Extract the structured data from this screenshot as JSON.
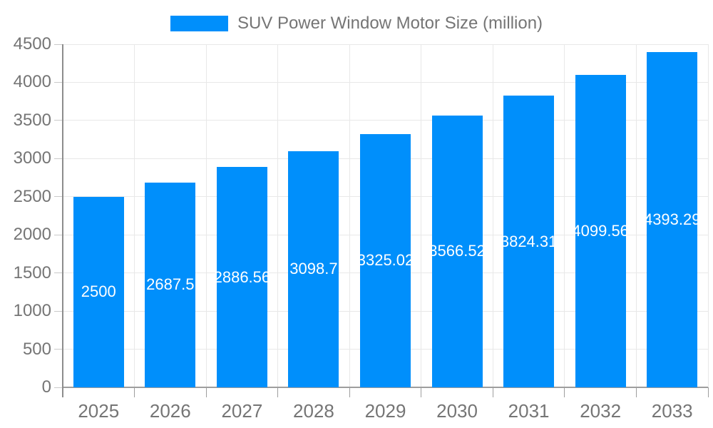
{
  "legend": {
    "label": "SUV Power Window Motor Size (million)"
  },
  "chart_data": {
    "type": "bar",
    "title": "SUV Power Window Motor Size (million)",
    "legend_position": "top",
    "categories": [
      "2025",
      "2026",
      "2027",
      "2028",
      "2029",
      "2030",
      "2031",
      "2032",
      "2033"
    ],
    "series": [
      {
        "name": "SUV Power Window Motor Size (million)",
        "values": [
          2500,
          2687.5,
          2886.56,
          3098.7,
          3325.02,
          3566.52,
          3824.31,
          4099.56,
          4393.29
        ]
      }
    ],
    "value_labels": [
      "2500",
      "2687.5",
      "2886.56",
      "3098.7",
      "3325.02",
      "3566.52",
      "3824.31",
      "4099.56",
      "4393.29"
    ],
    "xlabel": "",
    "ylabel": "",
    "ylim": [
      0,
      4500
    ],
    "yticks": [
      0,
      500,
      1000,
      1500,
      2000,
      2500,
      3000,
      3500,
      4000,
      4500
    ],
    "grid": true,
    "colors": {
      "bar": "#008FFB",
      "grid": "#e8e8e8",
      "axis_line": "#8c8c8c",
      "baseline": "#9e9e9e",
      "tick": "#9e9e9e",
      "axis_text": "#757575",
      "value_label_text": "#ffffff",
      "background": "#ffffff"
    }
  }
}
